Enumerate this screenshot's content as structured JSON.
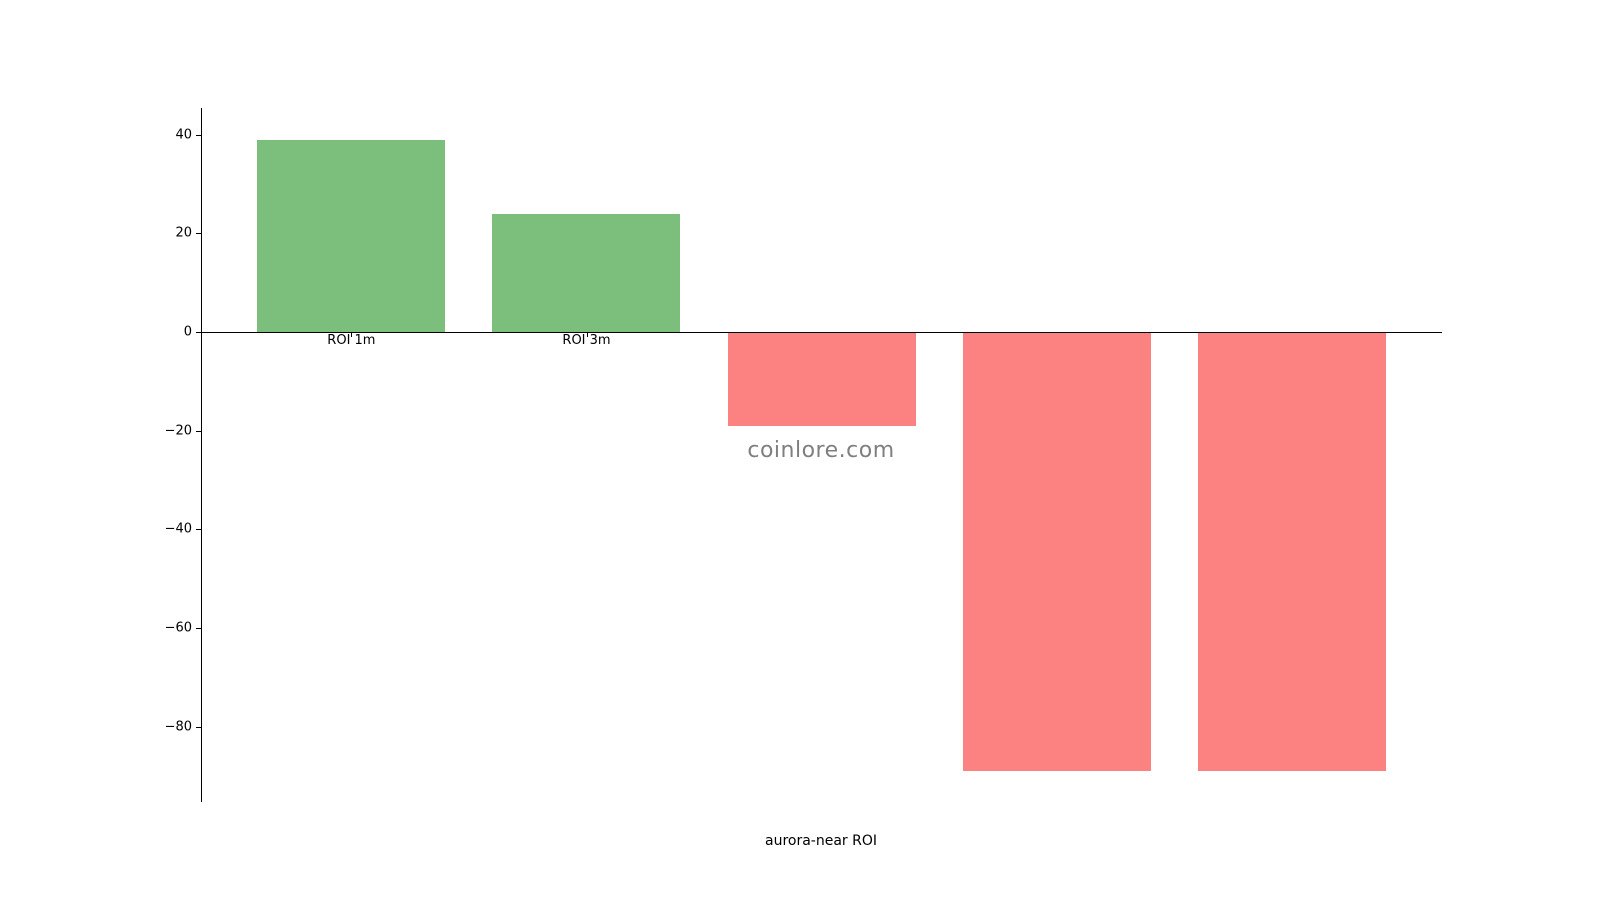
{
  "chart_data": {
    "type": "bar",
    "title": "",
    "xlabel": "aurora-near ROI",
    "ylabel": "",
    "categories": [
      "ROI 1m",
      "ROI 3m",
      "",
      "",
      ""
    ],
    "values": [
      39,
      24,
      -19,
      -89,
      -89
    ],
    "positive_color": "#7cbf7c",
    "negative_color": "#fc8181",
    "yticks": [
      {
        "value": 40,
        "label": "40"
      },
      {
        "value": 20,
        "label": "20"
      },
      {
        "value": 0,
        "label": "0"
      },
      {
        "value": -20,
        "label": "−20"
      },
      {
        "value": -40,
        "label": "−40"
      },
      {
        "value": -60,
        "label": "−60"
      },
      {
        "value": -80,
        "label": "−80"
      }
    ],
    "ylim": [
      -95.3,
      45.4
    ],
    "grid": false,
    "legend": "none",
    "watermark": "coinlore.com"
  }
}
